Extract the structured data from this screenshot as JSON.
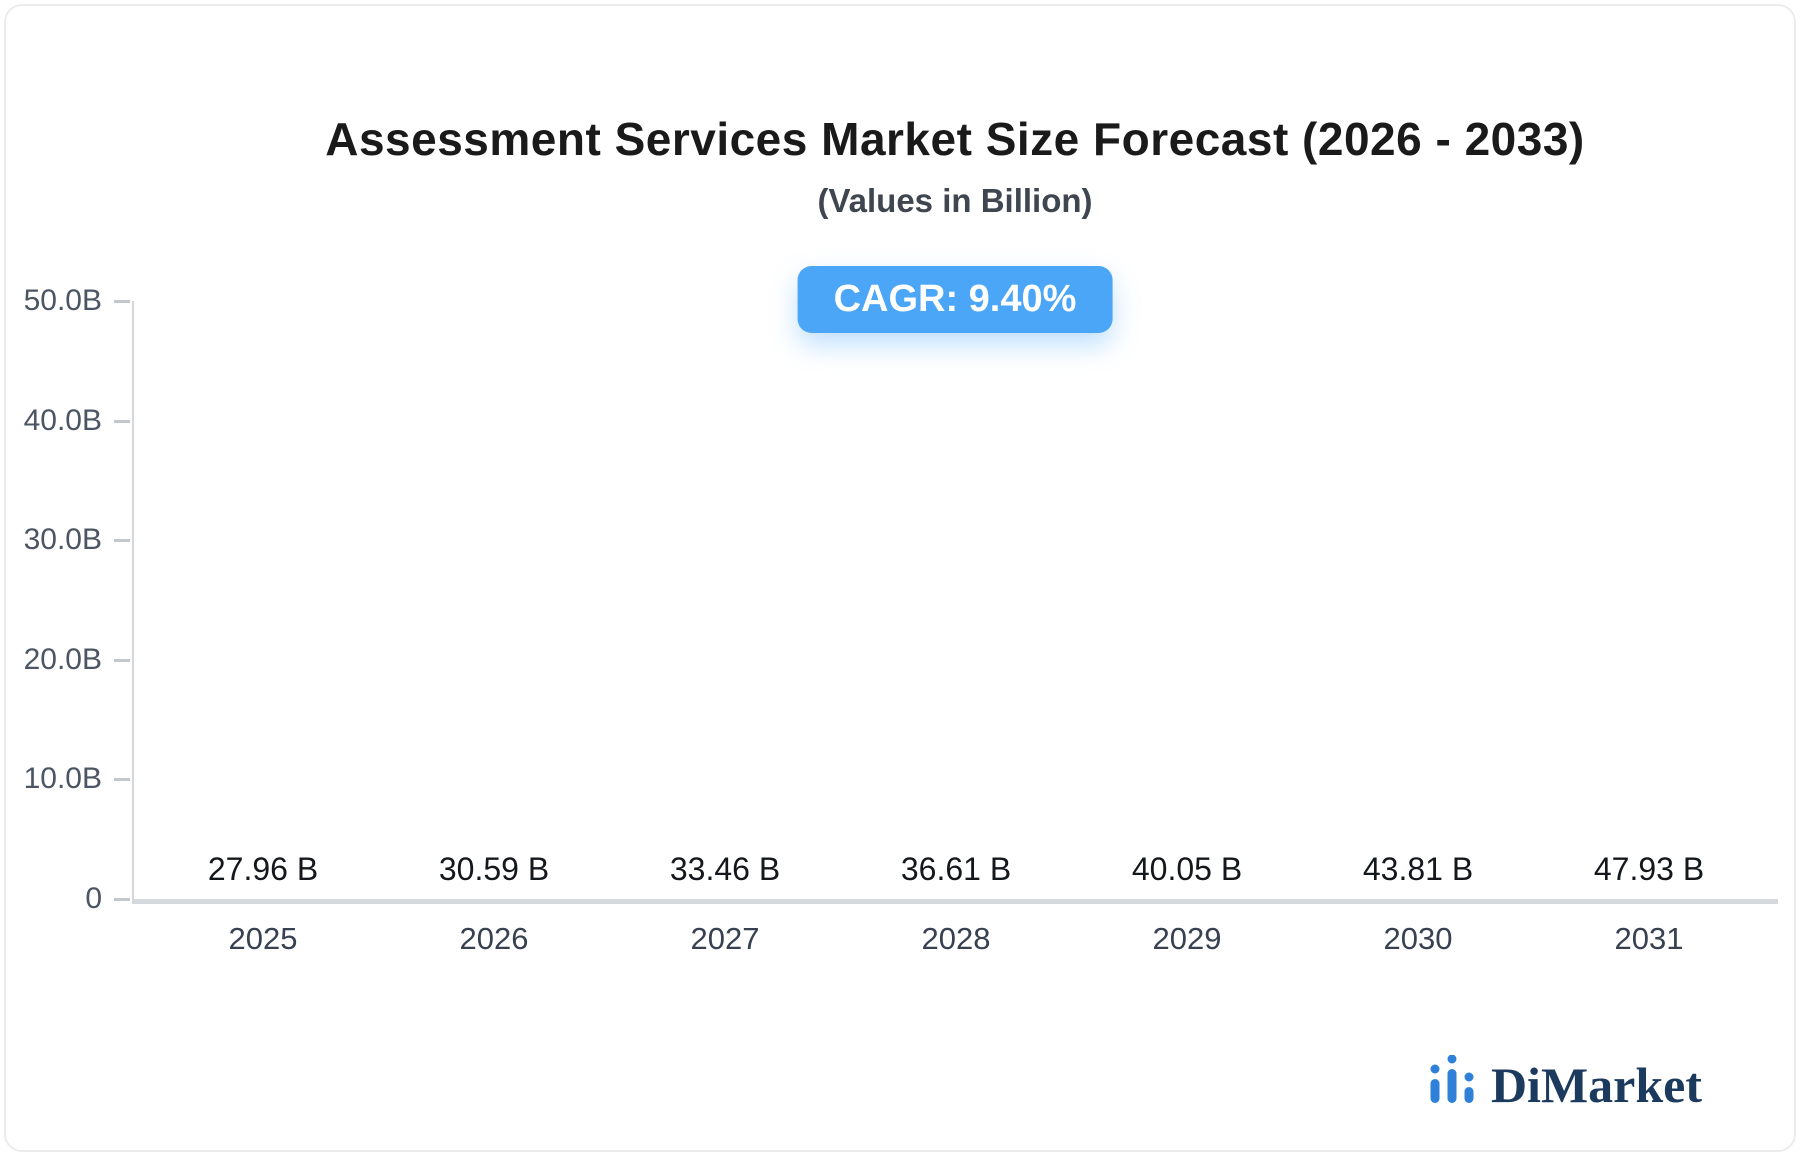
{
  "header": {
    "title": "Assessment Services Market Size Forecast (2026 - 2033)",
    "subtitle": "(Values in Billion)",
    "cagr_label": "CAGR: 9.40%"
  },
  "chart_data": {
    "type": "bar",
    "title": "Assessment Services Market Size Forecast (2026 - 2033)",
    "subtitle": "(Values in Billion)",
    "categories": [
      "2025",
      "2026",
      "2027",
      "2028",
      "2029",
      "2030",
      "2031"
    ],
    "values": [
      27.96,
      30.59,
      33.46,
      36.61,
      40.05,
      43.81,
      47.93
    ],
    "value_labels": [
      "27.96 B",
      "30.59 B",
      "33.46 B",
      "36.61 B",
      "40.05 B",
      "43.81 B",
      "47.93 B"
    ],
    "xlabel": "",
    "ylabel": "",
    "ylim": [
      0,
      50
    ],
    "ytick_values": [
      50,
      40,
      30,
      20,
      10,
      0
    ],
    "ytick_labels": [
      "50.0B",
      "40.0B",
      "30.0B",
      "20.0B",
      "10.0B",
      "0"
    ],
    "grid": false,
    "legend": false,
    "bar_color": "#429BF0",
    "bar_edge_color": "#2C7ECB",
    "annotation": "CAGR: 9.40%"
  },
  "branding": {
    "logo_text": "DiMarket",
    "logo_icon": "mini-bar-chart-icon",
    "logo_color": "#1b3a5e",
    "icon_color": "#2F80D8"
  }
}
